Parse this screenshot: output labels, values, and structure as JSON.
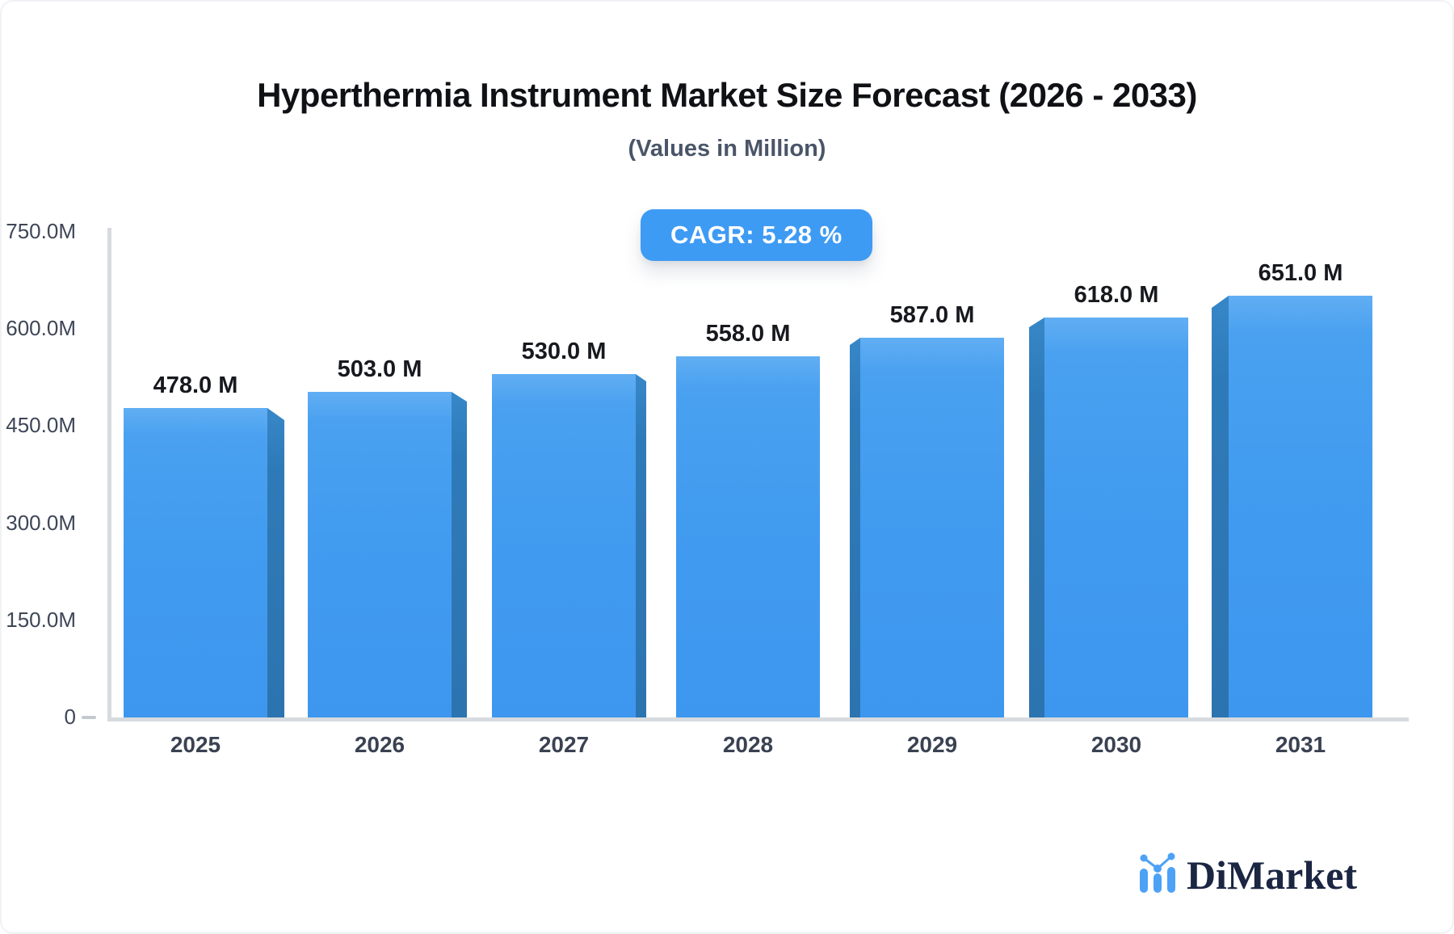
{
  "page": {
    "background": "#ffffff",
    "border_color": "#f0f2f5"
  },
  "cagr_badge": {
    "label": "CAGR: 5.28 %",
    "background": "#3e9bf4",
    "text_color": "#ffffff"
  },
  "chart_data": {
    "type": "bar",
    "title": "Hyperthermia Instrument Market Size Forecast (2026 - 2033)",
    "subtitle": "(Values in Million)",
    "categories": [
      "2025",
      "2026",
      "2027",
      "2028",
      "2029",
      "2030",
      "2031"
    ],
    "values": [
      478,
      503,
      530,
      558,
      587,
      618,
      651
    ],
    "value_labels": [
      "478.0 M",
      "503.0 M",
      "530.0 M",
      "558.0 M",
      "587.0 M",
      "618.0 M",
      "651.0 M"
    ],
    "ylabel": "",
    "xlabel": "",
    "ylim": [
      0,
      750
    ],
    "yticks": [
      {
        "value": 0,
        "label": "0"
      },
      {
        "value": 150,
        "label": "150.0M"
      },
      {
        "value": 300,
        "label": "300.0M"
      },
      {
        "value": 450,
        "label": "450.0M"
      },
      {
        "value": 600,
        "label": "600.0M"
      },
      {
        "value": 750,
        "label": "750.0M"
      }
    ],
    "grid": false,
    "legend": "none",
    "annotations": [
      "CAGR: 5.28 %"
    ],
    "style": "3d-bars",
    "bar_colors": {
      "face_top": "#61aef3",
      "face_bottom": "#3e97ef",
      "side": "#2e7ab8"
    }
  },
  "axis": {
    "line_color": "#d7dbdf",
    "tick_color": "#c4c9ce",
    "tick_label_color": "#3e4657",
    "category_label_color": "#3a4252",
    "value_label_color": "#17191e"
  },
  "logo": {
    "brand": "DiMarket",
    "icon": "mini-bar-chart-icon",
    "text_color": "#1b2642",
    "icon_color": "#4da2f5"
  }
}
